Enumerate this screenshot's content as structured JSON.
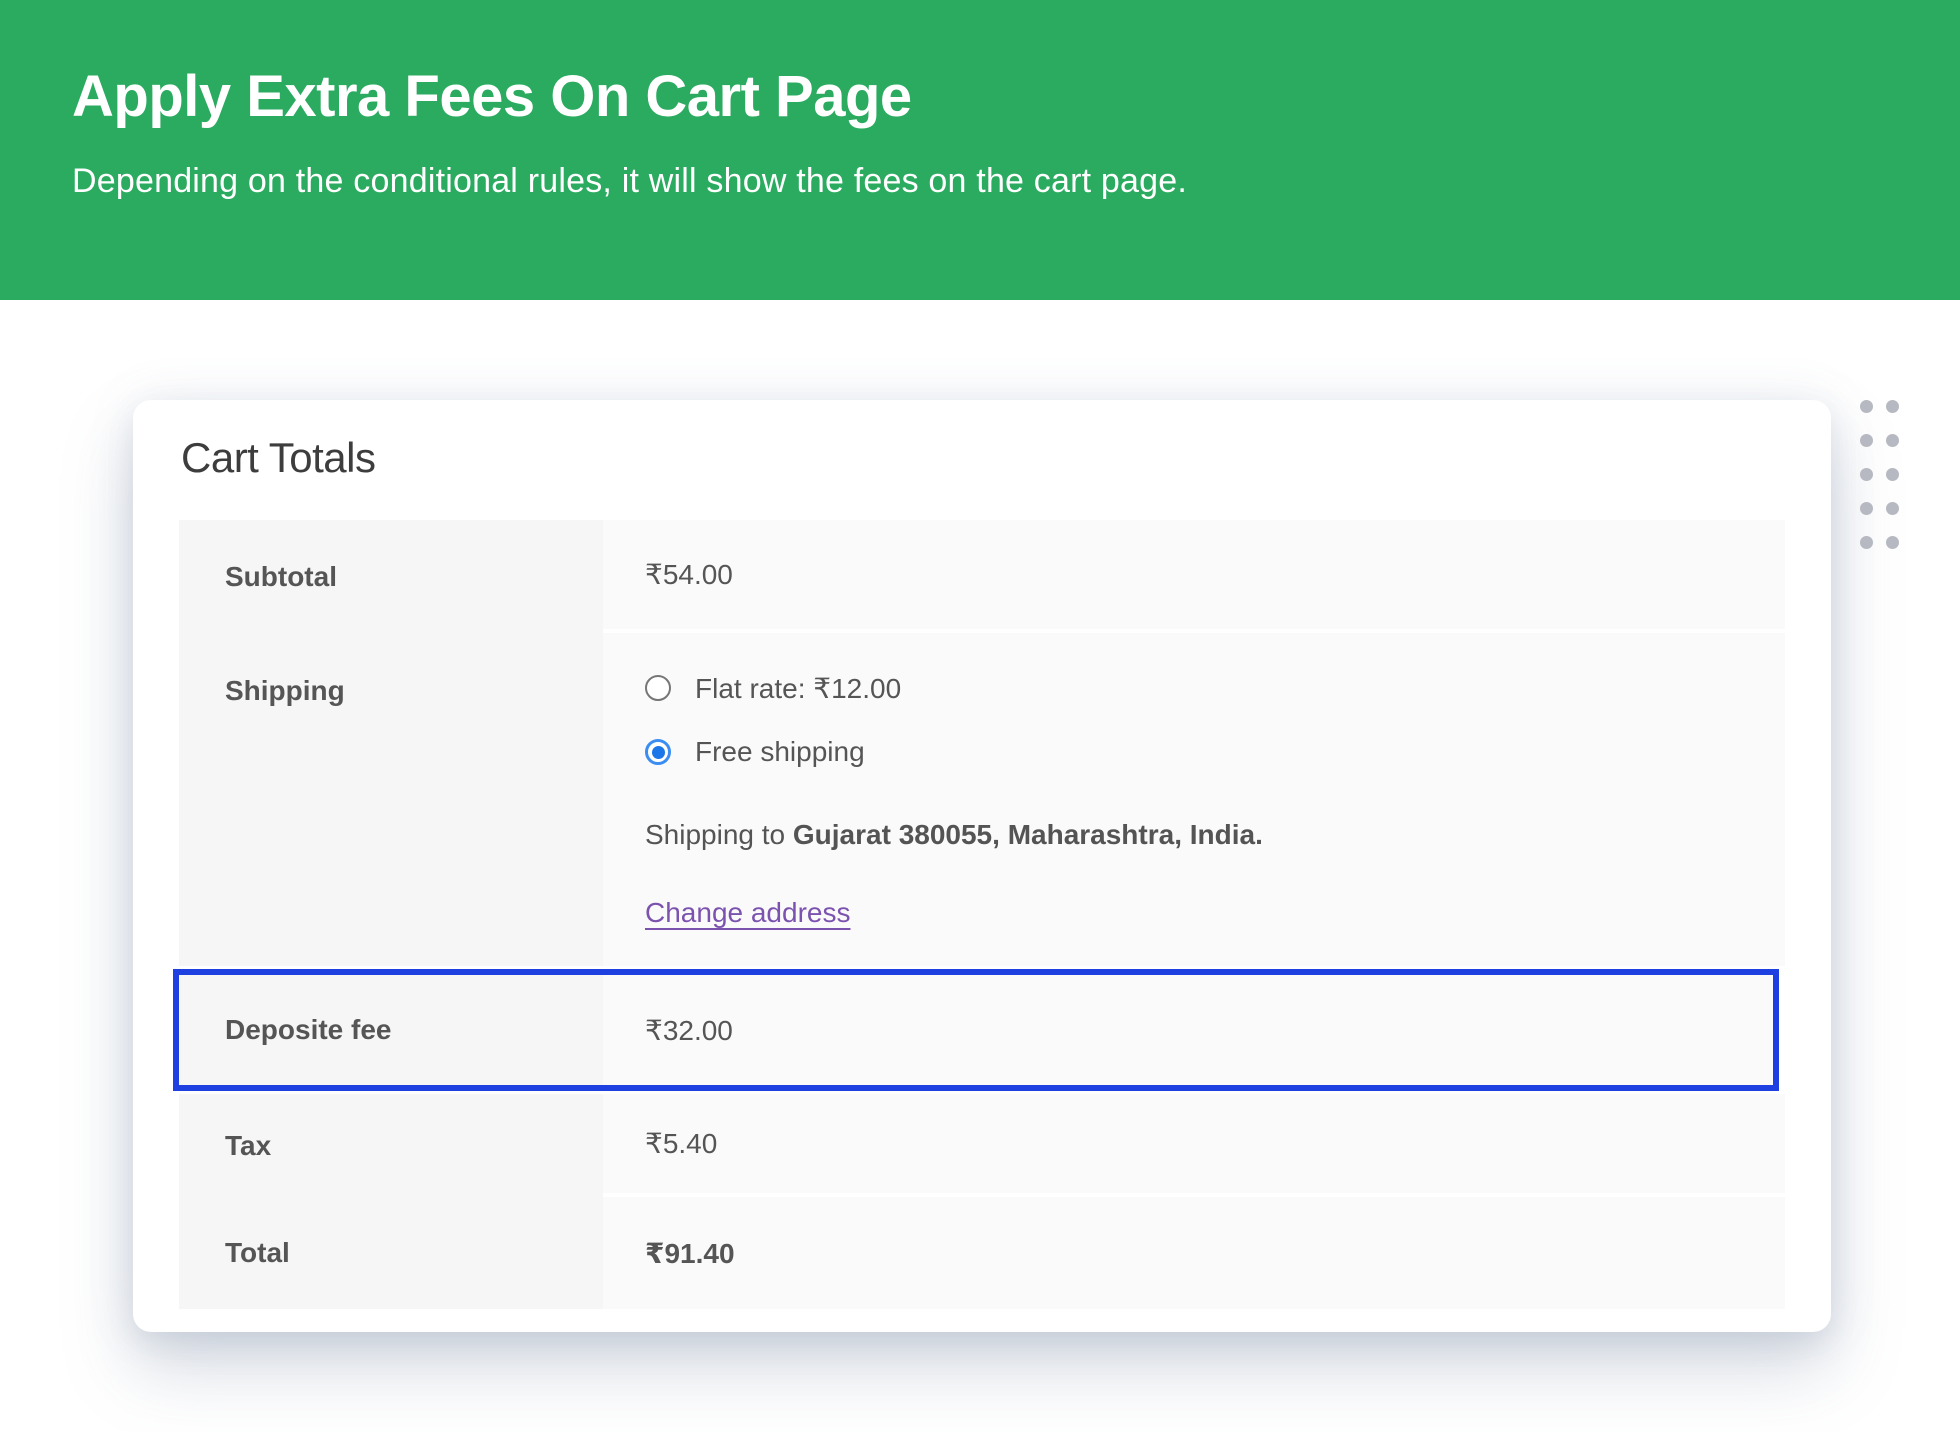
{
  "banner": {
    "title": "Apply Extra Fees On Cart Page",
    "subtitle": "Depending on the conditional rules, it will show the fees on the cart page."
  },
  "cart": {
    "heading": "Cart Totals",
    "subtotal": {
      "label": "Subtotal",
      "value": "₹54.00"
    },
    "shipping": {
      "label": "Shipping",
      "options": [
        {
          "label": "Flat rate: ₹12.00",
          "selected": false
        },
        {
          "label": "Free shipping",
          "selected": true
        }
      ],
      "destination_prefix": "Shipping to ",
      "destination": "Gujarat 380055, Maharashtra, India.",
      "change_link": "Change address"
    },
    "fee": {
      "label": "Deposite fee",
      "value": "₹32.00"
    },
    "tax": {
      "label": "Tax",
      "value": "₹5.40"
    },
    "total": {
      "label": "Total",
      "value": "₹91.40"
    }
  },
  "colors": {
    "banner_green": "#2aab5f",
    "highlight_blue": "#1e40e0",
    "link_purple": "#7b53af",
    "radio_blue": "#1b76e8"
  }
}
